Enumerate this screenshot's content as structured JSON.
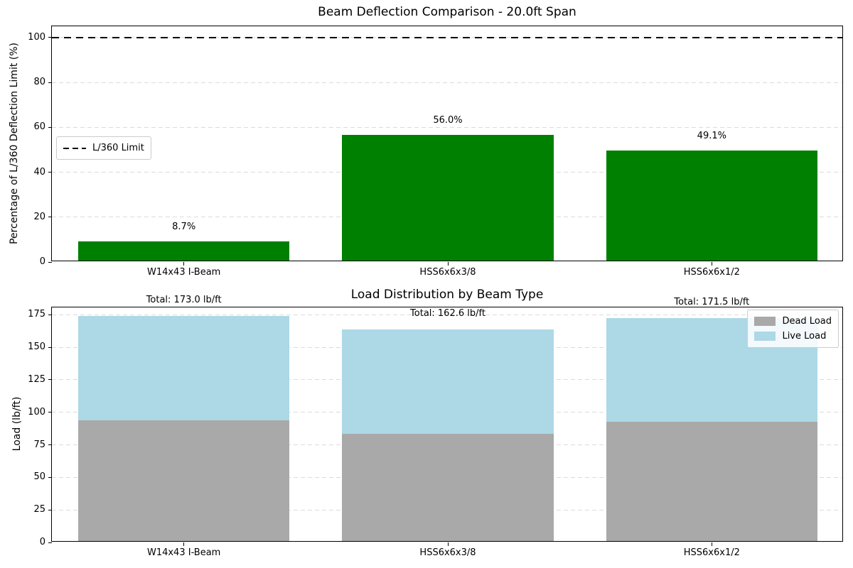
{
  "chart_data": [
    {
      "type": "bar",
      "title": "Beam Deflection Comparison - 20.0ft Span",
      "xlabel": "",
      "ylabel": "Percentage of L/360 Deflection Limit (%)",
      "categories": [
        "W14x43 I-Beam",
        "HSS6x6x3/8",
        "HSS6x6x1/2"
      ],
      "values": [
        8.7,
        56.0,
        49.1
      ],
      "bar_labels": [
        "8.7%",
        "56.0%",
        "49.1%"
      ],
      "bar_color": "#008000",
      "ylim": [
        0,
        105
      ],
      "yticks": [
        0,
        20,
        40,
        60,
        80,
        100
      ],
      "grid": true,
      "limit_line": {
        "value": 100,
        "label": "L/360 Limit",
        "color": "#000000",
        "style": "dashed"
      },
      "legend": {
        "position": "left-middle",
        "entries": [
          {
            "label": "L/360 Limit",
            "swatch": "dashed-line",
            "color": "#000000"
          }
        ]
      }
    },
    {
      "type": "bar",
      "stacked": true,
      "title": "Load Distribution by Beam Type",
      "xlabel": "",
      "ylabel": "Load (lb/ft)",
      "categories": [
        "W14x43 I-Beam",
        "HSS6x6x3/8",
        "HSS6x6x1/2"
      ],
      "series": [
        {
          "name": "Dead Load",
          "color": "#a9a9a9",
          "values": [
            93.0,
            82.6,
            91.5
          ]
        },
        {
          "name": "Live Load",
          "color": "#add8e6",
          "values": [
            80.0,
            80.0,
            80.0
          ]
        }
      ],
      "totals": [
        173.0,
        162.6,
        171.5
      ],
      "total_labels": [
        "Total: 173.0 lb/ft",
        "Total: 162.6 lb/ft",
        "Total: 171.5 lb/ft"
      ],
      "ylim": [
        0,
        180.6
      ],
      "yticks": [
        0,
        25,
        50,
        75,
        100,
        125,
        150,
        175
      ],
      "grid": true,
      "legend": {
        "position": "top-right",
        "entries": [
          {
            "label": "Dead Load",
            "swatch": "patch",
            "color": "#a9a9a9"
          },
          {
            "label": "Live Load",
            "swatch": "patch",
            "color": "#add8e6"
          }
        ]
      }
    }
  ]
}
